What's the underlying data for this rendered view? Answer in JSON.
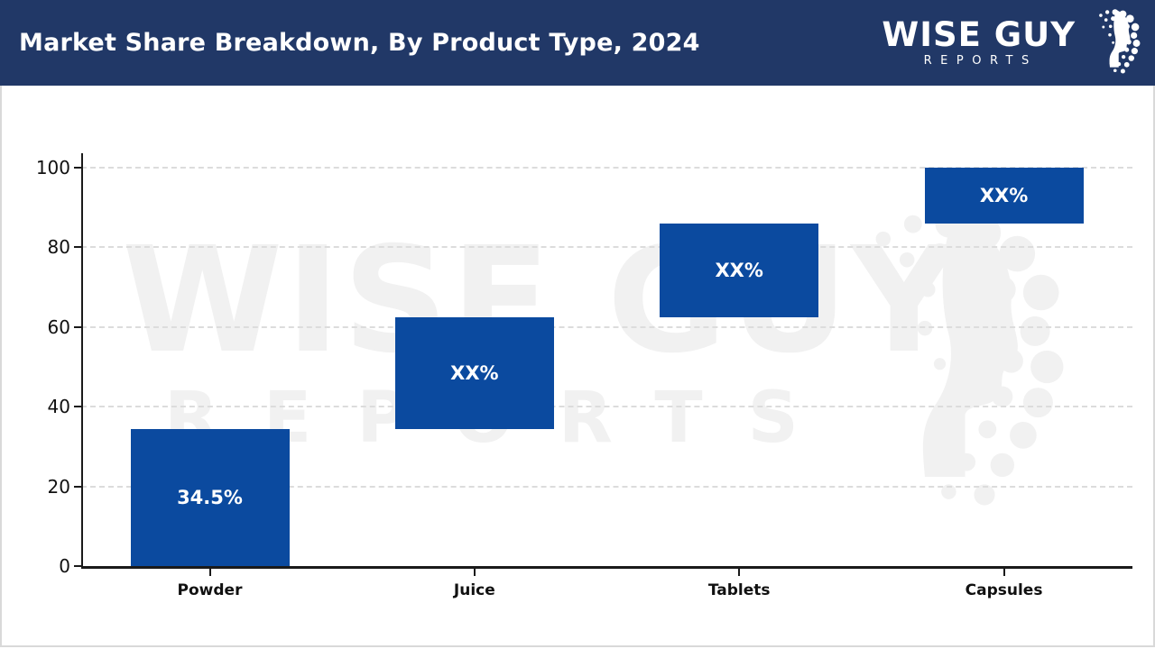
{
  "header": {
    "title": "Market Share Breakdown, By Product Type, 2024",
    "logo": {
      "line1": "WISE GUY",
      "line2": "REPORTS"
    }
  },
  "watermark": {
    "line1": "WISE GUY",
    "line2": "REPORTS"
  },
  "colors": {
    "header_bg": "#213867",
    "bar": "#0b4a9f",
    "bar_label": "#ffffff",
    "grid": "#dcdcdc",
    "axis": "#1a1a1a",
    "watermark": "#f1f1f1",
    "canvas_border": "#d9d9d9"
  },
  "chart_data": {
    "type": "bar",
    "subtype": "waterfall",
    "title": "Market Share Breakdown, By Product Type, 2024",
    "categories": [
      "Powder",
      "Juice",
      "Tablets",
      "Capsules"
    ],
    "segments": [
      {
        "category": "Powder",
        "start": 0,
        "end": 34.5,
        "label": "34.5%"
      },
      {
        "category": "Juice",
        "start": 34.5,
        "end": 62.5,
        "label": "XX%"
      },
      {
        "category": "Tablets",
        "start": 62.5,
        "end": 86,
        "label": "XX%"
      },
      {
        "category": "Capsules",
        "start": 86,
        "end": 100,
        "label": "XX%"
      }
    ],
    "xlabel": "",
    "ylabel": "",
    "ylim": [
      0,
      100
    ],
    "yticks": [
      0,
      20,
      40,
      60,
      80,
      100
    ],
    "grid": "horizontal-dashed",
    "legend_position": "none"
  }
}
